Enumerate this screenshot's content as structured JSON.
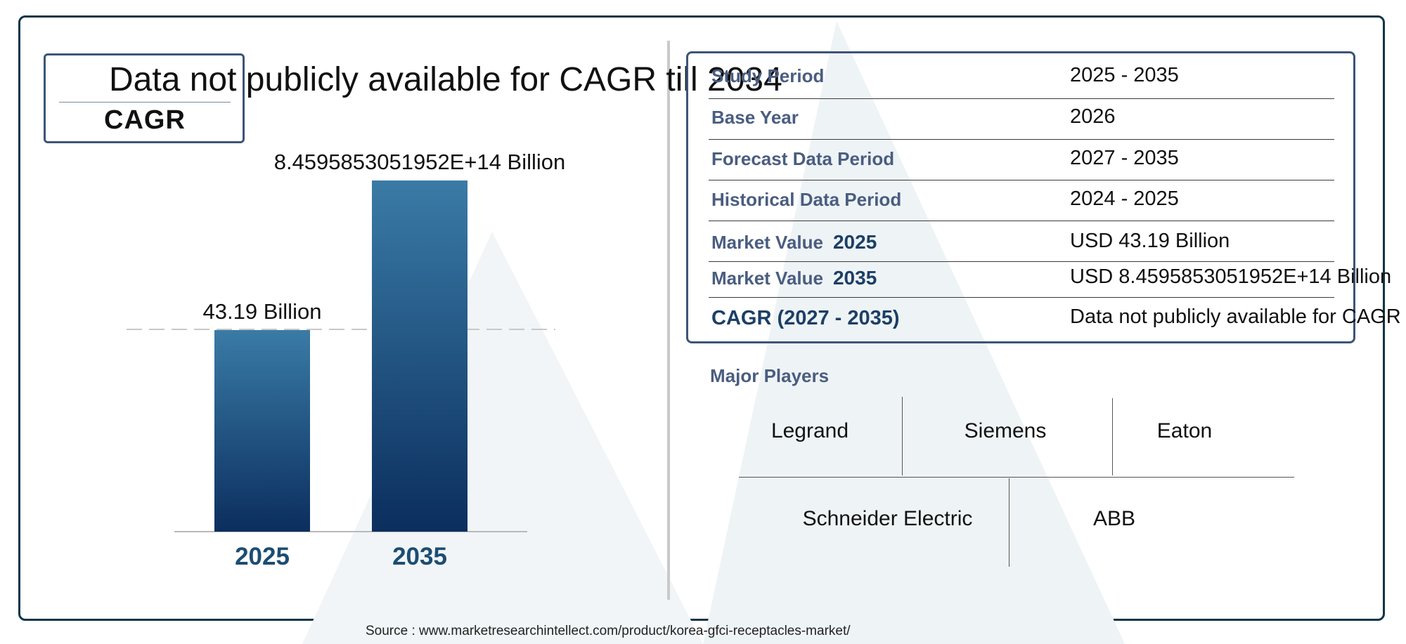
{
  "colors": {
    "frame": "#0e3548",
    "bar_top": "#3a7ba6",
    "bar_bottom": "#0b2e5e",
    "label_blue": "#4a5d80",
    "year_blue": "#1c4d72"
  },
  "cagr_card": {
    "headline": "Data not publicly available for CAGR till 2034",
    "label": "CAGR"
  },
  "chart_data": {
    "type": "bar",
    "categories": [
      "2025",
      "2035"
    ],
    "values": [
      43.19,
      845958530519520
    ],
    "data_labels": [
      "43.19 Billion",
      "8.4595853051952E+14 Billion"
    ],
    "title": "",
    "xlabel": "",
    "ylabel": "",
    "grid": false
  },
  "info_table": {
    "rows": [
      {
        "label": "Study Period",
        "year": "",
        "value": "2025 - 2035"
      },
      {
        "label": "Base Year",
        "year": "",
        "value": "2026"
      },
      {
        "label": "Forecast Data Period",
        "year": "",
        "value": "2027 - 2035"
      },
      {
        "label": "Historical Data Period",
        "year": "",
        "value": "2024 - 2025"
      },
      {
        "label": "Market Value",
        "year": "2025",
        "value": "USD 43.19 Billion"
      },
      {
        "label": "Market Value",
        "year": "2035",
        "value": "USD 8.4595853051952E+14 Billion"
      },
      {
        "label": "CAGR (2027 - 2035)",
        "year": "",
        "value": "Data not publicly available for CAGR ti"
      }
    ]
  },
  "players": {
    "title": "Major Players",
    "names": [
      "Legrand",
      "Siemens",
      "Eaton",
      "Schneider Electric",
      "ABB"
    ]
  },
  "source": "Source : www.marketresearchintellect.com/product/korea-gfci-receptacles-market/"
}
